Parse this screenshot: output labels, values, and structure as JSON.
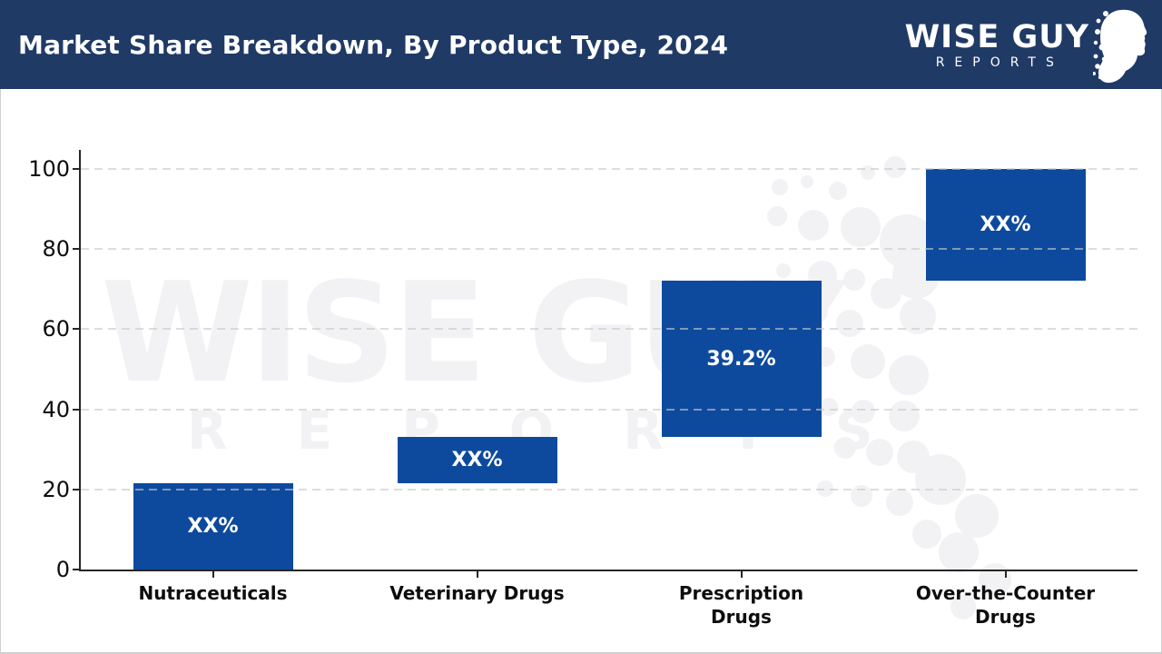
{
  "header": {
    "title": "Market Share Breakdown, By Product Type, 2024",
    "logo": {
      "line1": "WISE GUY",
      "line2": "REPORTS"
    }
  },
  "watermark": {
    "line1": "WISE GUY",
    "line2": "REPORTS"
  },
  "colors": {
    "header_bg": "#203a66",
    "bar_fill": "#0d4a9e",
    "bar_label_text": "#ffffff",
    "axis": "#262626",
    "tick_label_text": "#0d0d0d",
    "gridline": "#c8c8c8",
    "watermark_gray": "#f2f2f4",
    "page_border": "#cfcfcf",
    "title_text": "#ffffff"
  },
  "chart_data": {
    "type": "bar",
    "subtype": "waterfall-floating-bars",
    "title": "Market Share Breakdown, By Product Type, 2024",
    "xlabel": "",
    "ylabel": "",
    "categories": [
      "Nutraceuticals",
      "Veterinary Drugs",
      "Prescription Drugs",
      "Over-the-Counter Drugs"
    ],
    "series": [
      {
        "name": "Market share (%)",
        "segments": [
          {
            "category": "Nutraceuticals",
            "start": 0,
            "end": 21.5,
            "label": "XX%"
          },
          {
            "category": "Veterinary Drugs",
            "start": 21.5,
            "end": 33,
            "label": "XX%"
          },
          {
            "category": "Prescription Drugs",
            "start": 33,
            "end": 72.2,
            "label": "39.2%"
          },
          {
            "category": "Over-the-Counter Drugs",
            "start": 72.2,
            "end": 100,
            "label": "XX%"
          }
        ]
      }
    ],
    "ylim": [
      0,
      104.8
    ],
    "yticks": [
      0,
      20,
      40,
      60,
      80,
      100
    ],
    "grid": "horizontal dashed gridlines at y ticks, drawn above bars",
    "legend": "none"
  }
}
